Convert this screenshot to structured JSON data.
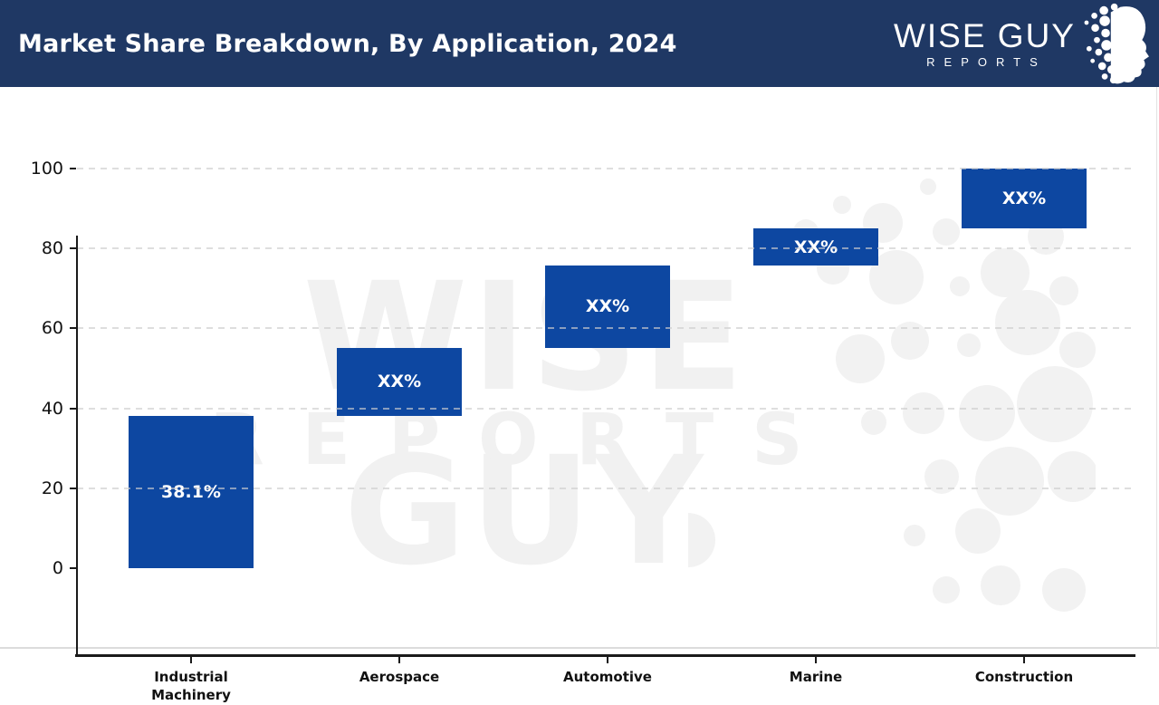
{
  "header": {
    "title": "Market Share Breakdown, By Application, 2024",
    "bg_color": "#1f3864",
    "logo": {
      "line1": "WISE GUY",
      "line2": "REPORTS"
    }
  },
  "watermark": {
    "line1": "WISE GUY",
    "line2": "REPORTS"
  },
  "chart_data": {
    "type": "bar",
    "subtype": "waterfall",
    "title": "Market Share Breakdown, By Application, 2024",
    "categories": [
      "Industrial Machinery",
      "Aerospace",
      "Automotive",
      "Marine",
      "Construction"
    ],
    "segments": [
      {
        "category": "Industrial Machinery",
        "start": 0,
        "end": 38.1,
        "label": "38.1%"
      },
      {
        "category": "Aerospace",
        "start": 38.1,
        "end": 55.2,
        "label": "XX%"
      },
      {
        "category": "Automotive",
        "start": 55.2,
        "end": 75.7,
        "label": "XX%"
      },
      {
        "category": "Marine",
        "start": 75.7,
        "end": 85.0,
        "label": "XX%"
      },
      {
        "category": "Construction",
        "start": 85.0,
        "end": 100.0,
        "label": "XX%"
      }
    ],
    "yticks": [
      0,
      20,
      40,
      60,
      80,
      100
    ],
    "ylim": [
      0,
      105
    ],
    "xlabel": "",
    "ylabel": "",
    "grid": true,
    "grid_style": "dashed",
    "legend": "none",
    "bar_color": "#0d47a1",
    "bar_label_color": "#ffffff",
    "axis_color": "#1a1a1a"
  }
}
